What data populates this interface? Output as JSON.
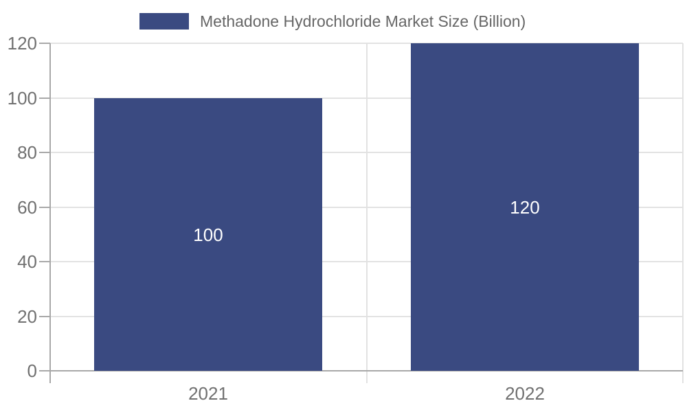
{
  "chart_data": {
    "type": "bar",
    "title": "Methadone Hydrochloride Market Size (Billion)",
    "legend": {
      "label": "Methadone Hydrochloride Market Size (Billion)",
      "position": "top-center"
    },
    "categories": [
      "2021",
      "2022"
    ],
    "series": [
      {
        "name": "Methadone Hydrochloride Market Size (Billion)",
        "values": [
          100,
          120
        ],
        "value_labels": [
          "100",
          "120"
        ]
      }
    ],
    "xlabel": "",
    "ylabel": "",
    "ylim": [
      0,
      120
    ],
    "yticks": [
      0,
      20,
      40,
      60,
      80,
      100,
      120
    ],
    "grid": true,
    "legend_position": "top-center",
    "colors": {
      "bar": "#3A4A81",
      "value_label": "#FFFFFF",
      "grid_line": "#E2E2E2",
      "axis_line": "#A8A8A8",
      "tick_label": "#707070",
      "legend_text": "#666666",
      "background": "#FFFFFF"
    }
  }
}
